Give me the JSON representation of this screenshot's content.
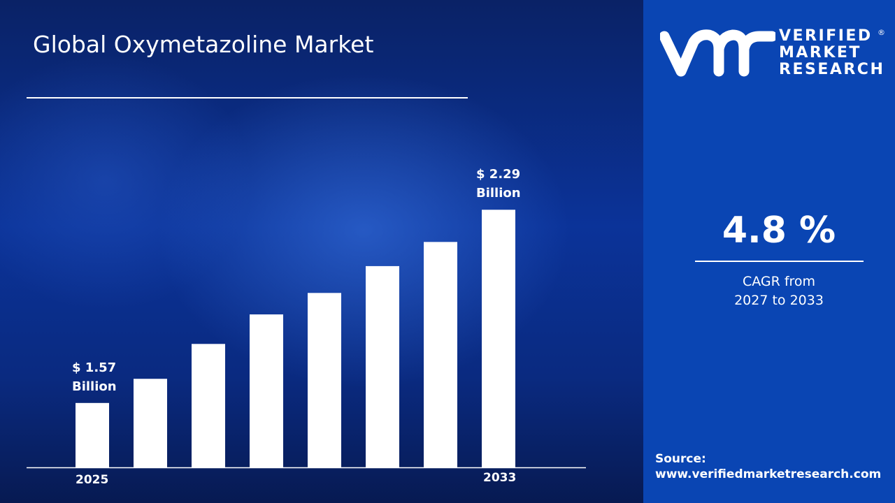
{
  "title": "Global Oxymetazoline Market",
  "brand": {
    "line1": "VERIFIED",
    "line2": "MARKET",
    "line3": "RESEARCH",
    "logo_mark": "vmr",
    "registered": "®"
  },
  "colors": {
    "panel": "#0a45b3",
    "bars": "#ffffff",
    "background": "#0b3399"
  },
  "cagr": {
    "value": "4.8 %",
    "label_line1": "CAGR from",
    "label_line2": "2027 to 2033"
  },
  "source": {
    "label": "Source:",
    "url": "www.verifiedmarketresearch.com"
  },
  "chart_data": {
    "type": "bar",
    "title": "Global Oxymetazoline Market",
    "categories": [
      "2025",
      "",
      "",
      "",
      "",
      "",
      "",
      "2033"
    ],
    "values": [
      1.57,
      1.66,
      1.79,
      1.9,
      1.98,
      2.08,
      2.17,
      2.29
    ],
    "unit": "USD Billion",
    "ylim": [
      1.33,
      2.4
    ],
    "grid": false,
    "annotations": {
      "first": {
        "line1": "$ 1.57",
        "line2": "Billion"
      },
      "last": {
        "line1": "$ 2.29",
        "line2": "Billion"
      }
    },
    "tick_labels": {
      "first": "2025",
      "last": "2033"
    }
  }
}
